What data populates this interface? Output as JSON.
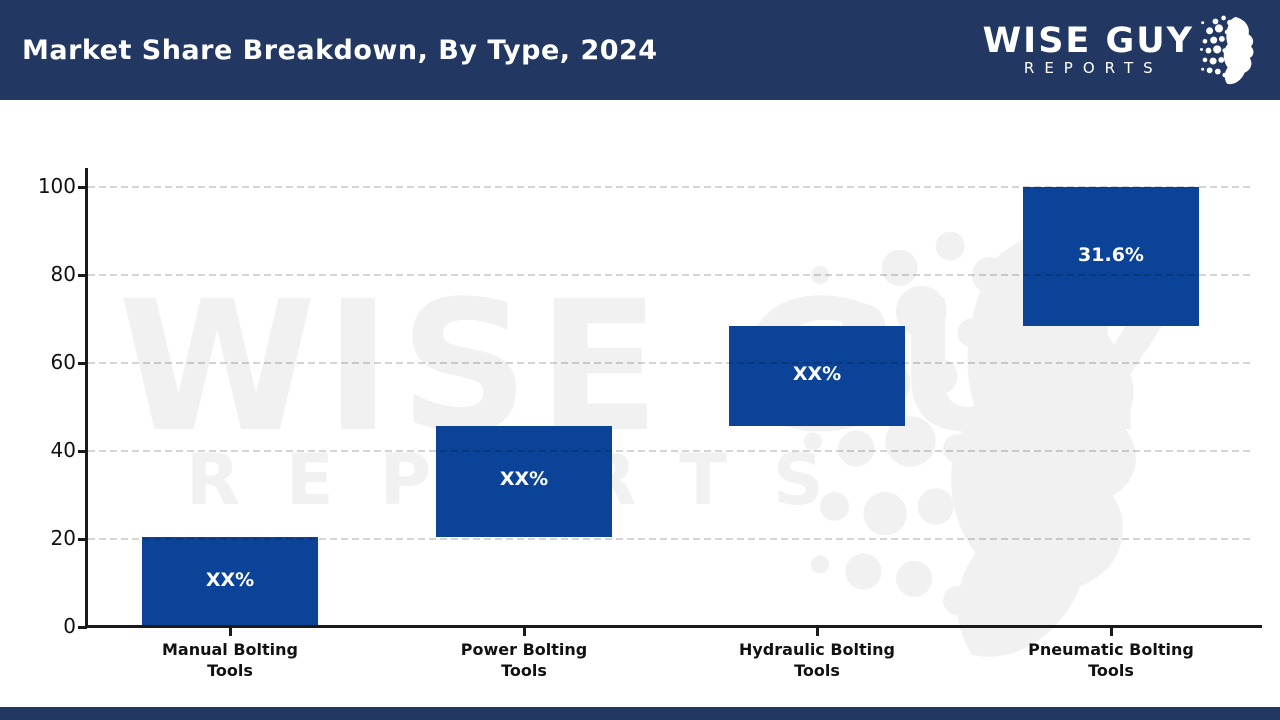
{
  "header": {
    "title": "Market Share Breakdown, By Type, 2024",
    "logo": {
      "line1": "WISE GUY",
      "line2": "REPORTS"
    }
  },
  "watermark": {
    "line1": "WISE GUY",
    "line2": "REPORTS"
  },
  "colors": {
    "header_bg": "#223862",
    "bar": "#0b4399",
    "axis": "#1a1a1a",
    "grid_dash": "rgba(0,0,0,0.17)",
    "bar_label": "#ffffff",
    "watermark": "#f1f1f1"
  },
  "chart_data": {
    "type": "bar",
    "subtype": "waterfall",
    "title": "Market Share Breakdown, By Type, 2024",
    "categories": [
      "Manual Bolting Tools",
      "Power Bolting Tools",
      "Hydraulic Bolting Tools",
      "Pneumatic Bolting Tools"
    ],
    "category_lines": [
      [
        "Manual Bolting",
        "Tools"
      ],
      [
        "Power Bolting",
        "Tools"
      ],
      [
        "Hydraulic Bolting",
        "Tools"
      ],
      [
        "Pneumatic Bolting",
        "Tools"
      ]
    ],
    "segments": [
      {
        "category": "Manual Bolting Tools",
        "start": 0,
        "end": 20.5,
        "label": "XX%"
      },
      {
        "category": "Power Bolting Tools",
        "start": 20.5,
        "end": 45.7,
        "label": "XX%"
      },
      {
        "category": "Hydraulic Bolting Tools",
        "start": 45.7,
        "end": 68.4,
        "label": "XX%"
      },
      {
        "category": "Pneumatic Bolting Tools",
        "start": 68.4,
        "end": 100,
        "label": "31.6%"
      }
    ],
    "ylim": [
      0,
      100
    ],
    "yticks": [
      0,
      20,
      40,
      60,
      80,
      100
    ],
    "grid": "horizontal-dashed",
    "legend": "none"
  }
}
